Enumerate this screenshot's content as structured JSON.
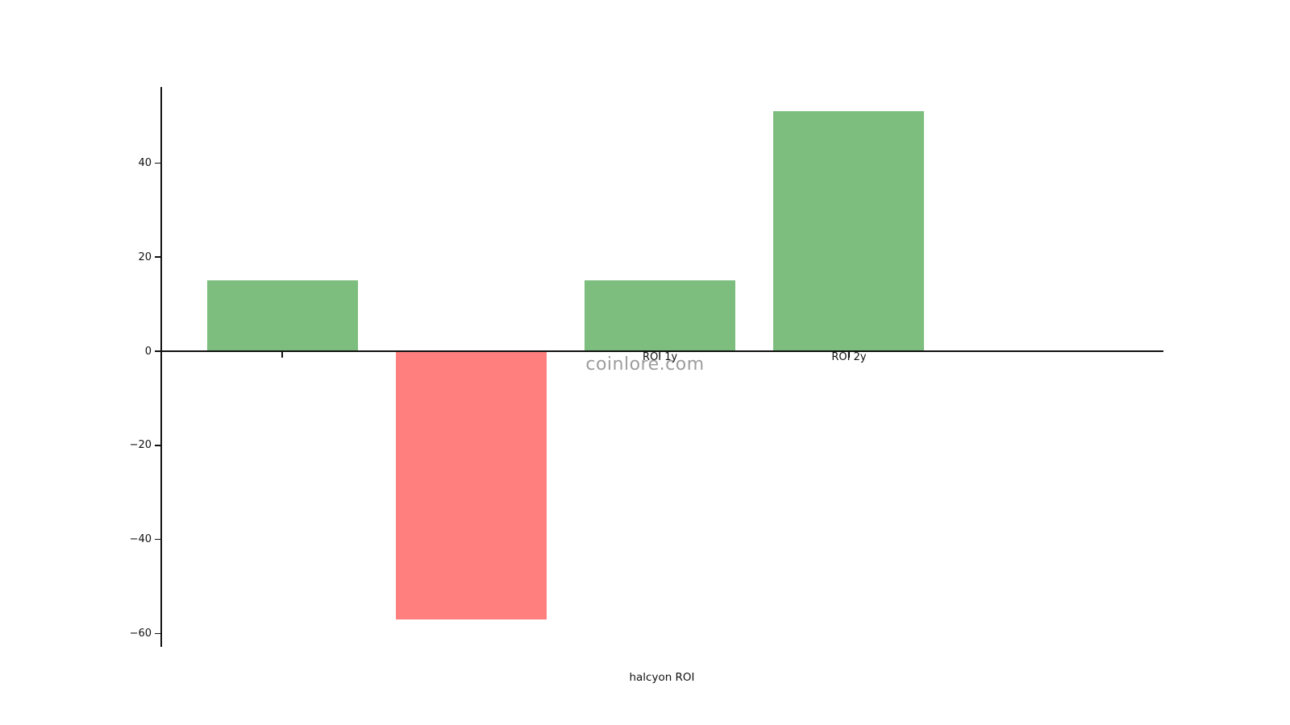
{
  "watermark": "coinlore.com",
  "xlabel": "halcyon ROI",
  "chart_data": {
    "type": "bar",
    "title": "",
    "xlabel": "halcyon ROI",
    "ylabel": "",
    "categories": [
      "",
      "",
      "ROI 1y",
      "ROI 2y"
    ],
    "values": [
      15,
      -57,
      15,
      51
    ],
    "bar_colors": [
      "#7dbe7f",
      "#ff7f7f",
      "#7dbe7f",
      "#7dbe7f"
    ],
    "positive_color": "#7dbe7f",
    "negative_color": "#ff7f7f",
    "y_ticks": [
      40,
      20,
      0,
      -20,
      -40,
      -60
    ],
    "y_tick_labels": [
      "40",
      "20",
      "0",
      "−20",
      "−40",
      "−60"
    ],
    "ylim": [
      -62.4,
      56.4
    ],
    "grid": false,
    "legend_position": "none",
    "axis_color": "#111111",
    "watermark_text": "coinlore.com",
    "notes": "x tick label of second bar hidden behind negative red bar; first tick has empty label"
  }
}
